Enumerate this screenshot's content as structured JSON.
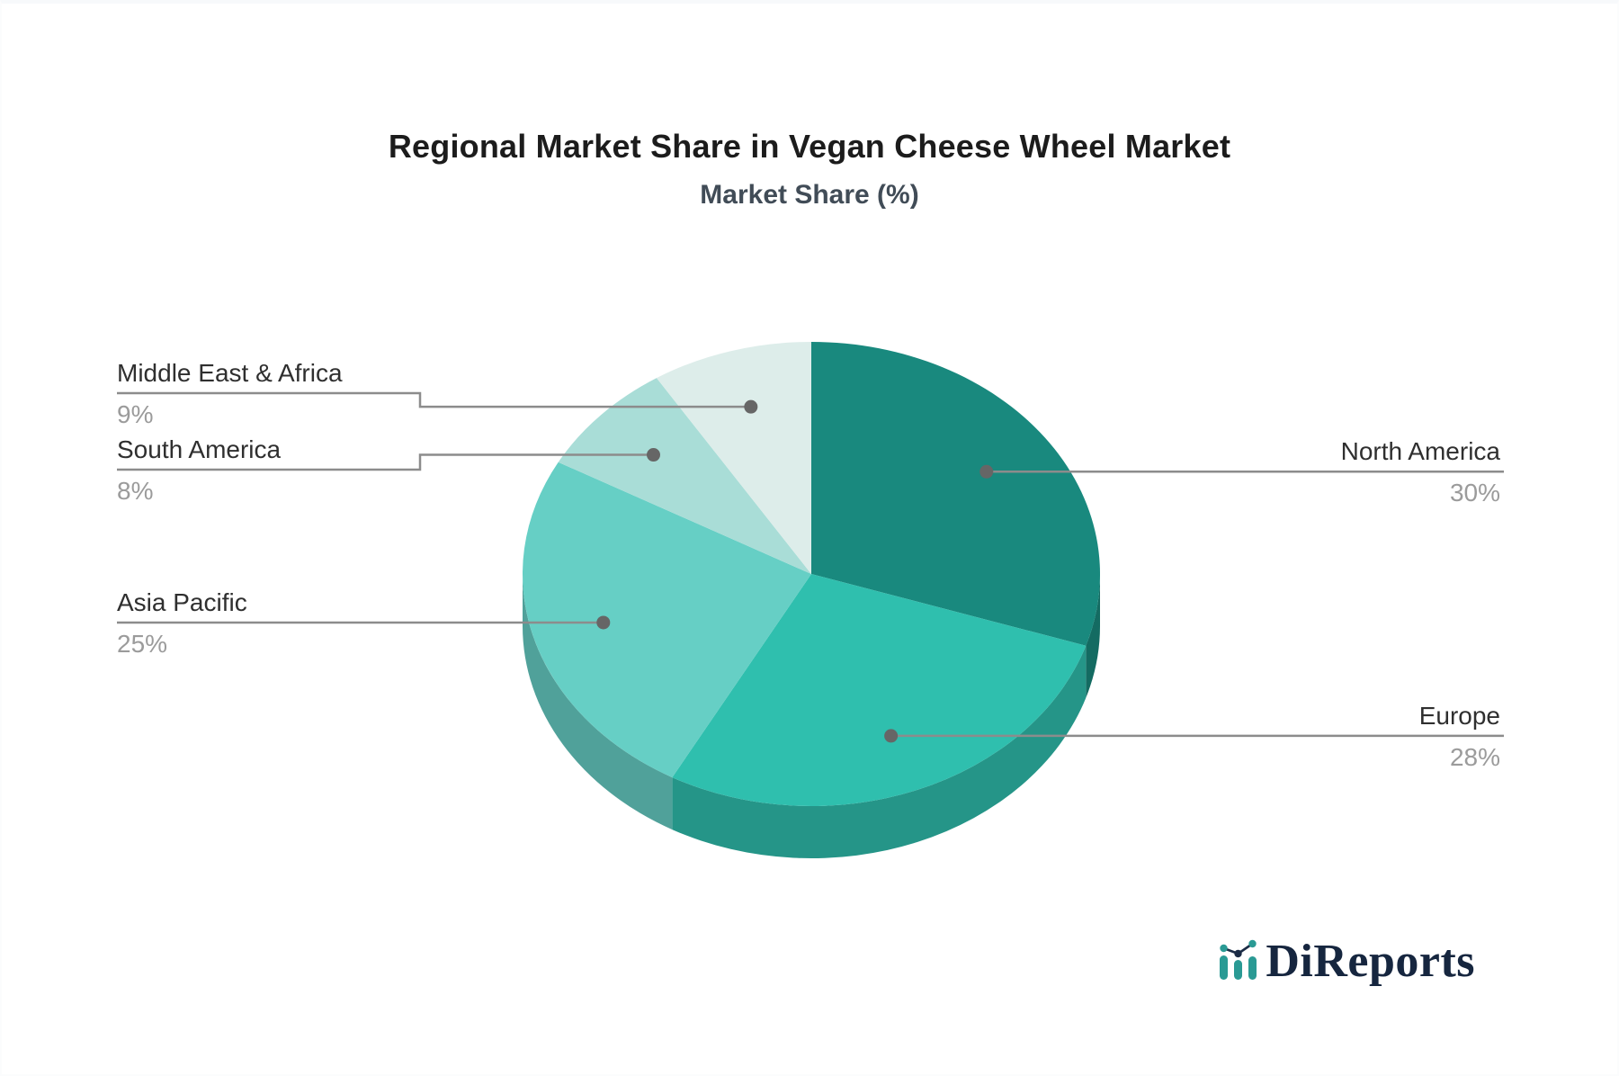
{
  "chart_data": {
    "type": "pie",
    "title": "Regional Market Share in Vegan Cheese Wheel Market",
    "subtitle": "Market Share (%)",
    "unit": "%",
    "style": "3d",
    "direction": "clockwise",
    "start_angle": "12-oclock",
    "legend": "none",
    "grid": false,
    "slices": [
      {
        "label": "North America",
        "value": 30,
        "display": "30%",
        "color": "#19897e",
        "label_side": "right"
      },
      {
        "label": "Europe",
        "value": 28,
        "display": "28%",
        "color": "#2fbfae",
        "label_side": "right"
      },
      {
        "label": "Asia Pacific",
        "value": 25,
        "display": "25%",
        "color": "#66cfc5",
        "label_side": "left"
      },
      {
        "label": "South America",
        "value": 8,
        "display": "8%",
        "color": "#a9ddd7",
        "label_side": "left"
      },
      {
        "label": "Middle East & Africa",
        "value": 9,
        "display": "9%",
        "color": "#ddedea",
        "label_side": "left"
      }
    ]
  },
  "branding": {
    "logo_text": "DiReports",
    "logo_icon": "bar-chart-with-trendline-icon",
    "logo_text_color": "#16263f",
    "logo_icon_color": "#2a9a94",
    "logo_icon_accent": "#1b2b45"
  },
  "colors": {
    "title": "#1c1c1c",
    "subtitle": "#414c57",
    "label_name": "#2f2f2f",
    "label_value": "#9b9b9b",
    "leader_line": "#8c8c8c",
    "leader_dot": "#666666",
    "background": "#ffffff"
  }
}
